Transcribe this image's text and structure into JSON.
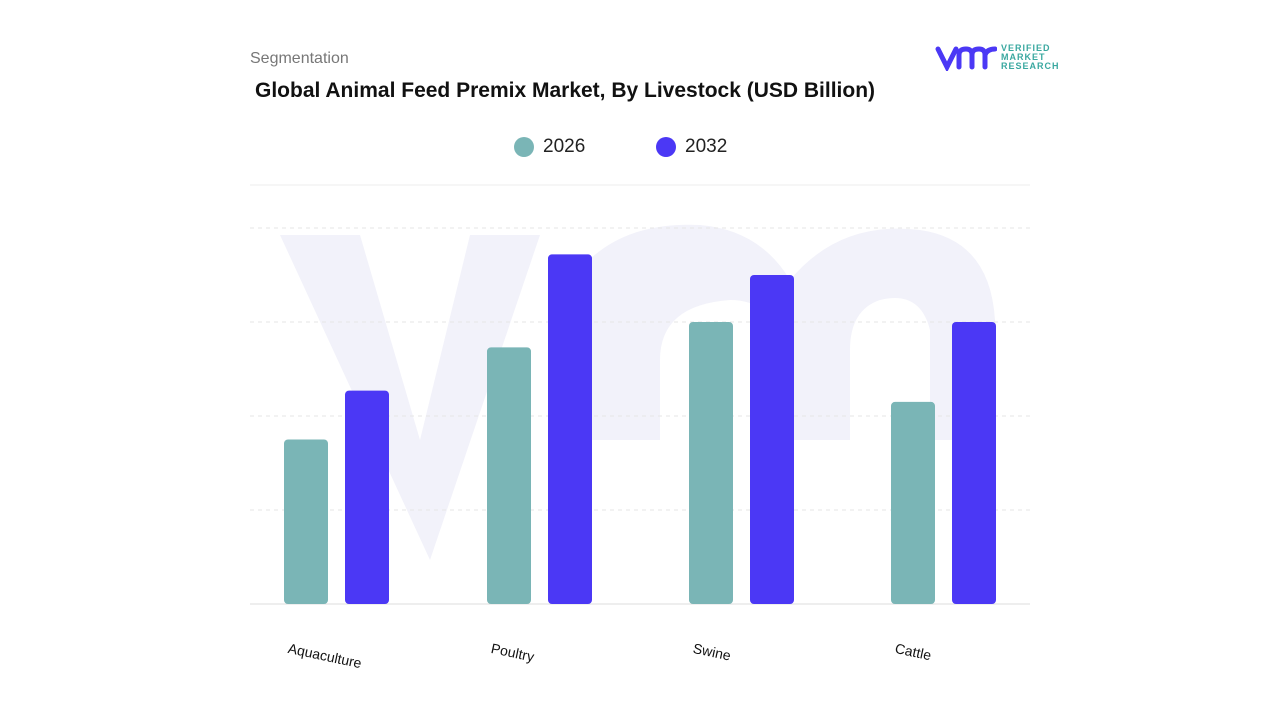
{
  "header": {
    "section": "Segmentation",
    "title": "Global Animal Feed Premix Market, By Livestock (USD Billion)"
  },
  "logo": {
    "brand": "VERIFIED MARKET RESEARCH",
    "lines": [
      "VERIFIED",
      "MARKET",
      "RESEARCH"
    ]
  },
  "chart_data": {
    "type": "bar",
    "title": "Global Animal Feed Premix Market, By Livestock (USD Billion)",
    "categories": [
      "Aquaculture",
      "Poultry",
      "Swine",
      "Cattle"
    ],
    "series": [
      {
        "name": "2026",
        "color": "#7ab5b6",
        "values": [
          1.75,
          2.73,
          3.0,
          2.15
        ]
      },
      {
        "name": "2032",
        "color": "#4b38f5",
        "values": [
          2.27,
          3.72,
          3.5,
          3.0
        ]
      }
    ],
    "ylim": [
      0,
      4
    ],
    "grid": true,
    "legend_position": "top-center",
    "axis_tick_labels_shown": false
  }
}
